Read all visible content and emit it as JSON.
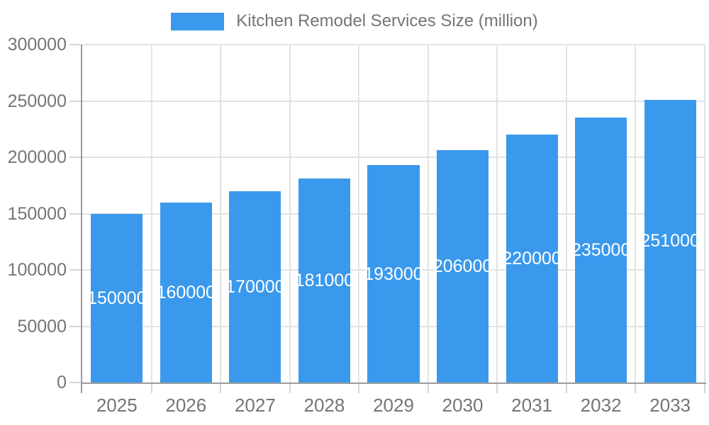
{
  "chart_data": {
    "type": "bar",
    "title": "Kitchen Remodel Services Size (million)",
    "categories": [
      "2025",
      "2026",
      "2027",
      "2028",
      "2029",
      "2030",
      "2031",
      "2032",
      "2033"
    ],
    "values": [
      150000,
      160000,
      170000,
      181000,
      193000,
      206000,
      220000,
      235000,
      251000
    ],
    "xlabel": "",
    "ylabel": "",
    "ylim": [
      0,
      300000
    ],
    "yticks": [
      0,
      50000,
      100000,
      150000,
      200000,
      250000,
      300000
    ],
    "grid": true,
    "legend_position": "top",
    "bar_label_position": "center-inside",
    "colors": {
      "bar": "#3A99EC",
      "bar_label": "#FFFFFF",
      "axis_text": "#757575",
      "legend_text": "#757575",
      "gridline": "#E3E3E3",
      "tick": "#D6D6D6",
      "axis_line": "#9B9B9B",
      "background": "#FFFFFF"
    }
  }
}
